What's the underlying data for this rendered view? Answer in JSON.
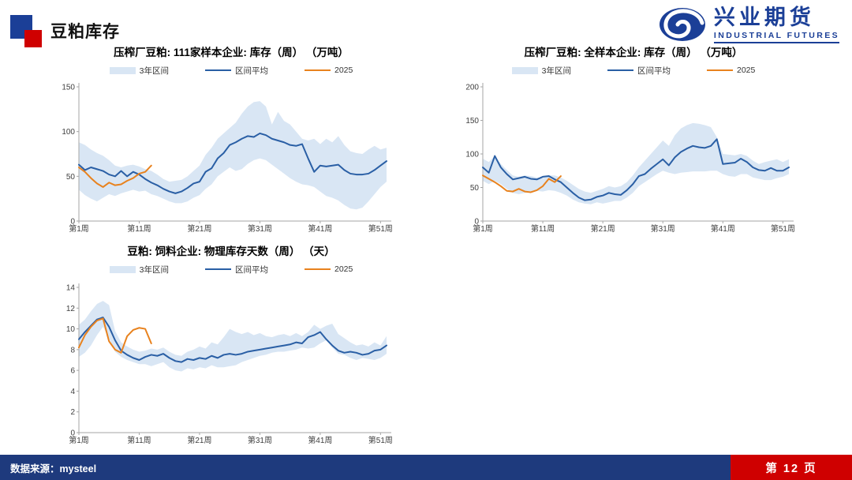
{
  "header": {
    "title": "豆粕库存",
    "brand_cn": "兴业期货",
    "brand_en": "INDUSTRIAL FUTURES"
  },
  "footer": {
    "source": "数据来源：mysteel",
    "page": "第 12 页"
  },
  "colors": {
    "brand_blue": "#1b3f97",
    "footer_bg": "#1e3a7d",
    "page_red": "#cf0000"
  },
  "chart_data": [
    {
      "type": "line",
      "title": "压榨厂豆粕: 111家样本企业: 库存（周） （万吨）",
      "legend": [
        "3年区间",
        "区间平均",
        "2025"
      ],
      "legend_position": "top",
      "grid": false,
      "weeks": 52,
      "x_tick_weeks": [
        1,
        11,
        21,
        31,
        41,
        51
      ],
      "x_tick_labels": [
        "第1周",
        "第11周",
        "第21周",
        "第31周",
        "第41周",
        "第51周"
      ],
      "ylim": [
        0,
        150
      ],
      "yticks": [
        0,
        50,
        100,
        150
      ],
      "margins": {
        "l": 22,
        "r": 18,
        "t": 10,
        "b": 16
      },
      "colors": {
        "band": "#d9e6f4"
      },
      "band_upper": [
        88,
        85,
        80,
        76,
        73,
        68,
        62,
        60,
        62,
        63,
        61,
        58,
        56,
        52,
        47,
        44,
        45,
        46,
        50,
        56,
        62,
        74,
        82,
        92,
        98,
        104,
        110,
        120,
        128,
        133,
        134,
        128,
        108,
        122,
        112,
        108,
        100,
        92,
        90,
        92,
        86,
        92,
        88,
        95,
        85,
        78,
        76,
        75,
        80,
        84,
        80,
        82
      ],
      "band_lower": [
        35,
        29,
        25,
        22,
        26,
        30,
        28,
        31,
        33,
        35,
        33,
        34,
        30,
        28,
        25,
        22,
        20,
        20,
        22,
        26,
        29,
        36,
        41,
        50,
        55,
        60,
        56,
        58,
        64,
        68,
        70,
        68,
        63,
        58,
        53,
        48,
        44,
        41,
        40,
        38,
        33,
        28,
        26,
        23,
        18,
        14,
        13,
        15,
        22,
        30,
        38,
        44
      ],
      "series": [
        {
          "name": "区间平均",
          "color": "#2a5fa5",
          "values": [
            63,
            57,
            60,
            58,
            56,
            52,
            50,
            56,
            50,
            55,
            52,
            47,
            43,
            40,
            36,
            33,
            31,
            33,
            37,
            42,
            44,
            55,
            59,
            70,
            76,
            85,
            88,
            92,
            95,
            94,
            98,
            96,
            92,
            90,
            88,
            85,
            84,
            86,
            70,
            55,
            62,
            61,
            62,
            63,
            57,
            53,
            52,
            52,
            53,
            57,
            62,
            67
          ]
        },
        {
          "name": "2025",
          "color": "#e8821e",
          "values": [
            60,
            55,
            48,
            42,
            38,
            43,
            40,
            41,
            45,
            48,
            53,
            55,
            62
          ]
        }
      ]
    },
    {
      "type": "line",
      "title": "压榨厂豆粕: 全样本企业: 库存（周） （万吨）",
      "legend": [
        "3年区间",
        "区间平均",
        "2025"
      ],
      "legend_position": "top",
      "grid": false,
      "weeks": 52,
      "x_tick_weeks": [
        1,
        11,
        21,
        31,
        41,
        51
      ],
      "x_tick_labels": [
        "第1周",
        "第11周",
        "第21周",
        "第31周",
        "第41周",
        "第51周"
      ],
      "ylim": [
        0,
        200
      ],
      "yticks": [
        0,
        50,
        100,
        150,
        200
      ],
      "margins": {
        "l": 24,
        "r": 18,
        "t": 10,
        "b": 16
      },
      "colors": {
        "band": "#d9e6f4"
      },
      "band_upper": [
        93,
        88,
        97,
        85,
        76,
        68,
        66,
        68,
        67,
        65,
        64,
        68,
        68,
        65,
        60,
        54,
        48,
        44,
        42,
        45,
        48,
        52,
        50,
        52,
        58,
        68,
        80,
        90,
        100,
        110,
        120,
        112,
        128,
        138,
        143,
        146,
        145,
        143,
        140,
        125,
        100,
        99,
        98,
        100,
        97,
        90,
        85,
        88,
        90,
        92,
        88,
        92
      ],
      "band_lower": [
        60,
        55,
        60,
        55,
        48,
        42,
        40,
        42,
        44,
        45,
        44,
        46,
        45,
        42,
        38,
        32,
        28,
        26,
        25,
        28,
        26,
        28,
        30,
        30,
        35,
        42,
        52,
        58,
        64,
        70,
        75,
        72,
        70,
        72,
        73,
        74,
        74,
        74,
        75,
        75,
        70,
        67,
        66,
        70,
        70,
        65,
        63,
        61,
        61,
        64,
        66,
        70
      ],
      "series": [
        {
          "name": "区间平均",
          "color": "#2a5fa5",
          "values": [
            80,
            72,
            97,
            80,
            70,
            62,
            64,
            66,
            63,
            62,
            66,
            67,
            62,
            58,
            50,
            42,
            35,
            31,
            32,
            36,
            38,
            42,
            40,
            39,
            46,
            55,
            67,
            70,
            78,
            85,
            92,
            83,
            95,
            103,
            108,
            112,
            110,
            109,
            112,
            122,
            85,
            86,
            87,
            93,
            88,
            80,
            76,
            75,
            79,
            75,
            75,
            80
          ]
        },
        {
          "name": "2025",
          "color": "#e8821e",
          "values": [
            68,
            63,
            58,
            52,
            45,
            44,
            48,
            44,
            43,
            46,
            52,
            63,
            58,
            67
          ]
        }
      ]
    },
    {
      "type": "line",
      "title": "豆粕: 饲料企业: 物理库存天数（周） （天）",
      "legend": [
        "3年区间",
        "区间平均",
        "2025"
      ],
      "legend_position": "top",
      "grid": false,
      "weeks": 52,
      "x_tick_weeks": [
        1,
        11,
        21,
        31,
        41,
        51
      ],
      "x_tick_labels": [
        "第1周",
        "第11周",
        "第21周",
        "第31周",
        "第41周",
        "第51周"
      ],
      "ylim": [
        0,
        14
      ],
      "yticks": [
        0,
        2,
        4,
        6,
        8,
        10,
        12,
        14
      ],
      "margins": {
        "l": 22,
        "r": 18,
        "t": 12,
        "b": 20
      },
      "colors": {
        "band": "#d9e6f4"
      },
      "band_upper": [
        10.4,
        10.9,
        11.7,
        12.4,
        12.7,
        12.3,
        9.8,
        8.7,
        8.3,
        8.0,
        7.8,
        7.9,
        8.1,
        8.0,
        8.2,
        7.8,
        7.5,
        7.4,
        7.8,
        8.0,
        8.3,
        8.1,
        8.7,
        8.5,
        9.2,
        10.0,
        9.7,
        9.5,
        9.7,
        9.4,
        9.6,
        9.3,
        9.2,
        9.4,
        9.5,
        9.3,
        9.6,
        9.3,
        9.7,
        10.4,
        10.0,
        10.3,
        10.5,
        9.5,
        9.1,
        8.7,
        8.4,
        8.5,
        8.3,
        8.7,
        8.4,
        9.3
      ],
      "band_lower": [
        7.3,
        7.7,
        8.4,
        9.4,
        10.2,
        9.1,
        7.8,
        7.3,
        7.0,
        6.8,
        6.6,
        6.6,
        6.4,
        6.6,
        6.8,
        6.3,
        6.0,
        5.9,
        6.2,
        6.1,
        6.3,
        6.2,
        6.5,
        6.3,
        6.3,
        6.4,
        6.5,
        6.8,
        7.0,
        7.2,
        7.4,
        7.5,
        7.7,
        7.8,
        7.8,
        7.9,
        8.0,
        8.2,
        8.1,
        8.2,
        8.6,
        8.9,
        8.2,
        7.6,
        7.5,
        7.2,
        7.0,
        7.2,
        7.1,
        7.0,
        7.2,
        7.6
      ],
      "series": [
        {
          "name": "区间平均",
          "color": "#2a5fa5",
          "values": [
            9.0,
            9.7,
            10.3,
            10.9,
            11.1,
            10.2,
            8.9,
            7.9,
            7.5,
            7.2,
            7.0,
            7.3,
            7.5,
            7.4,
            7.6,
            7.2,
            6.9,
            6.8,
            7.1,
            7.0,
            7.2,
            7.1,
            7.4,
            7.2,
            7.5,
            7.6,
            7.5,
            7.6,
            7.8,
            7.9,
            8.0,
            8.1,
            8.2,
            8.3,
            8.4,
            8.5,
            8.7,
            8.6,
            9.2,
            9.4,
            9.7,
            9.0,
            8.4,
            7.9,
            7.7,
            7.8,
            7.7,
            7.5,
            7.6,
            7.9,
            8.0,
            8.4
          ]
        },
        {
          "name": "2025",
          "color": "#e8821e",
          "values": [
            8.2,
            9.4,
            10.2,
            10.8,
            11.0,
            8.8,
            8.0,
            7.7,
            9.3,
            9.9,
            10.1,
            10.0,
            8.6
          ]
        }
      ]
    }
  ]
}
